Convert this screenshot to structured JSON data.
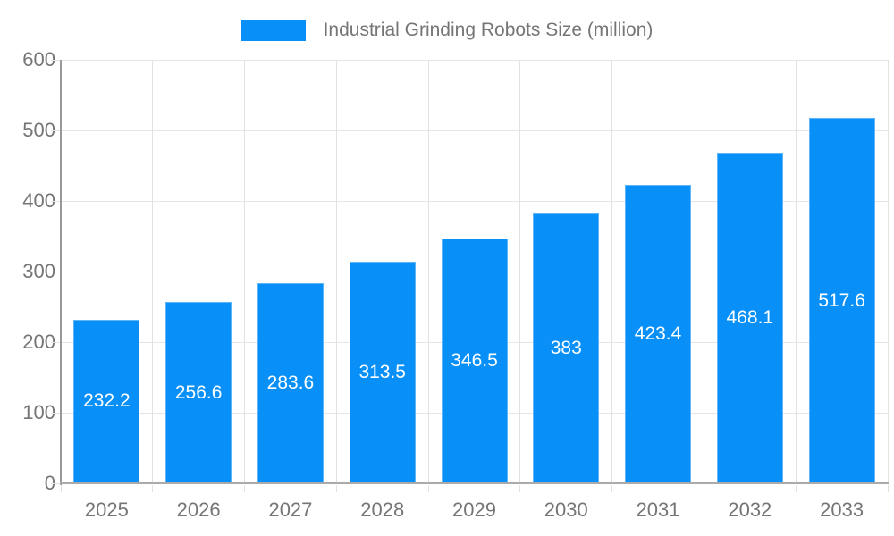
{
  "chart_data": {
    "type": "bar",
    "title": "Industrial Grinding Robots Size (million)",
    "categories": [
      "2025",
      "2026",
      "2027",
      "2028",
      "2029",
      "2030",
      "2031",
      "2032",
      "2033"
    ],
    "values": [
      232.2,
      256.6,
      283.6,
      313.5,
      346.5,
      383,
      423.4,
      468.1,
      517.6
    ],
    "xlabel": "",
    "ylabel": "",
    "ylim": [
      0,
      600
    ],
    "y_ticks": [
      0,
      100,
      200,
      300,
      400,
      500,
      600
    ],
    "grid": "on",
    "legend_position": "top-center",
    "bar_color": "#0890F8",
    "bar_border_color": "#7FC4FA",
    "value_label_color": "#FFFFFF",
    "axis_text_color": "#757575",
    "axis_line_color": "#999999",
    "gridline_color": "#E6E6E6",
    "background_color": "#FFFFFF"
  }
}
